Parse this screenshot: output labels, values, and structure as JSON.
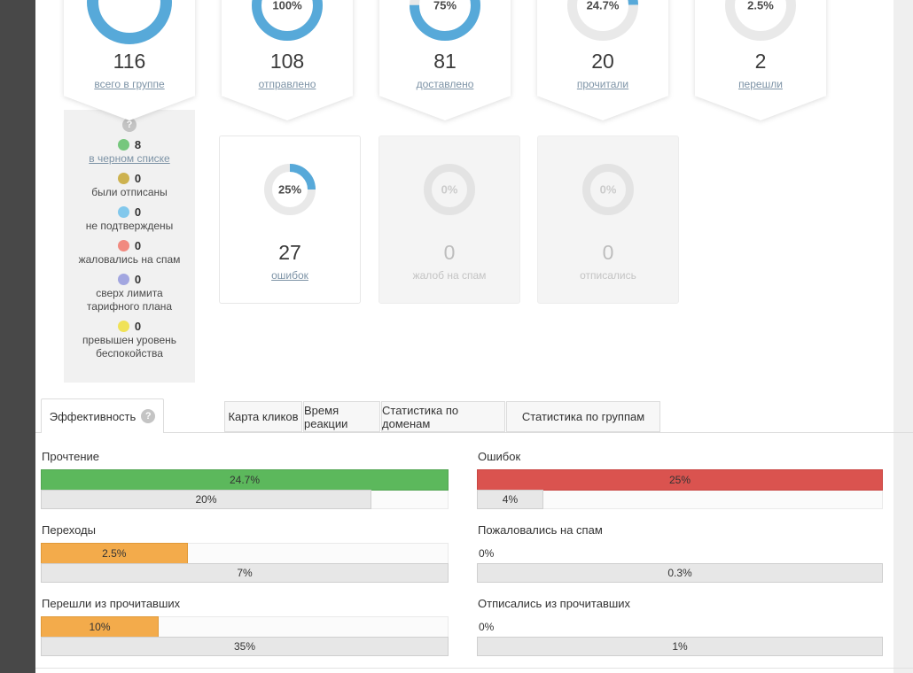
{
  "colors": {
    "blue": "#57a9d9",
    "green": "#5cb85c",
    "green_border": "#53a553",
    "orange": "#f3ab4b",
    "orange_border": "#e09a3a",
    "red": "#da534f",
    "red_border": "#c94743",
    "ring_gray": "#e9e9e9",
    "ring_gray_dim": "#e3e3e3",
    "gray_fill": "#e7e7e7",
    "gray_fill_border": "#cfcfcf",
    "link": "#7d93a6",
    "rail": "#484848"
  },
  "top_cards": [
    {
      "key": "total",
      "value": "116",
      "label": "всего в группе",
      "percent_label": "",
      "ring_pct": 100,
      "big": true
    },
    {
      "key": "sent",
      "value": "108",
      "label": "отправлено",
      "percent_label": "100%",
      "ring_pct": 100,
      "big": false
    },
    {
      "key": "delivered",
      "value": "81",
      "label": "доставлено",
      "percent_label": "75%",
      "ring_pct": 75,
      "big": false
    },
    {
      "key": "read",
      "value": "20",
      "label": "прочитали",
      "percent_label": "24.7%",
      "ring_pct": 24.7,
      "big": false
    },
    {
      "key": "clicked",
      "value": "2",
      "label": "перешли",
      "percent_label": "2.5%",
      "ring_pct": 2.5,
      "big": false
    }
  ],
  "legend": {
    "help_icon": "?",
    "items": [
      {
        "color": "#76c77d",
        "value": "8",
        "label": "в черном списке",
        "link": true
      },
      {
        "color": "#cdb24f",
        "value": "0",
        "label": "были отписаны",
        "link": false
      },
      {
        "color": "#82c8ec",
        "value": "0",
        "label": "не подтверждены",
        "link": false
      },
      {
        "color": "#f18a80",
        "value": "0",
        "label": "жаловались на спам",
        "link": false
      },
      {
        "color": "#a2a6e0",
        "value": "0",
        "label": "сверх лимита тарифного плана",
        "link": false
      },
      {
        "color": "#f0e257",
        "value": "0",
        "label": "превышен уровень беспокойства",
        "link": false
      }
    ]
  },
  "mid_cards": [
    {
      "key": "errors",
      "value": "27",
      "label": "ошибок",
      "percent_label": "25%",
      "ring_pct": 25,
      "active": true
    },
    {
      "key": "spam-complaints",
      "value": "0",
      "label": "жалоб на спам",
      "percent_label": "0%",
      "ring_pct": 0,
      "active": false
    },
    {
      "key": "unsubscribed",
      "value": "0",
      "label": "отписались",
      "percent_label": "0%",
      "ring_pct": 0,
      "active": false
    }
  ],
  "tabs": [
    {
      "key": "effectiveness",
      "label": "Эффективность",
      "active": true,
      "help_icon": "?"
    },
    {
      "key": "click-map",
      "label": "Карта кликов",
      "active": false
    },
    {
      "key": "reaction-time",
      "label": "Время реакции",
      "active": false
    },
    {
      "key": "domain-stats",
      "label": "Статистика по доменам",
      "active": false
    },
    {
      "key": "group-stats",
      "label": "Статистика по группам",
      "active": false
    }
  ],
  "chart_data": [
    {
      "type": "pie",
      "title": "воронка рассылки (donut cards)",
      "series": [
        {
          "label": "всего в группе",
          "value": 116,
          "pct": null
        },
        {
          "label": "отправлено",
          "value": 108,
          "pct": 100
        },
        {
          "label": "доставлено",
          "value": 81,
          "pct": 75
        },
        {
          "label": "прочитали",
          "value": 20,
          "pct": 24.7
        },
        {
          "label": "перешли",
          "value": 2,
          "pct": 2.5
        },
        {
          "label": "ошибок",
          "value": 27,
          "pct": 25
        },
        {
          "label": "жалоб на спам",
          "value": 0,
          "pct": 0
        },
        {
          "label": "отписались",
          "value": 0,
          "pct": 0
        }
      ]
    },
    {
      "type": "bar",
      "title": "Эффективность",
      "note": "paired horizontal bars: campaign value vs comparison value; widths scaled to pair max",
      "columns": [
        {
          "metrics": [
            {
              "label": "Прочтение",
              "value": 24.7,
              "value_label": "24.7%",
              "compare": 20,
              "compare_label": "20%",
              "color": "green"
            },
            {
              "label": "Переходы",
              "value": 2.5,
              "value_label": "2.5%",
              "compare": 7,
              "compare_label": "7%",
              "color": "orange"
            },
            {
              "label": "Перешли из прочитавших",
              "value": 10,
              "value_label": "10%",
              "compare": 35,
              "compare_label": "35%",
              "color": "orange"
            }
          ]
        },
        {
          "metrics": [
            {
              "label": "Ошибок",
              "value": 25,
              "value_label": "25%",
              "compare": 4,
              "compare_label": "4%",
              "color": "red"
            },
            {
              "label": "Пожаловались на спам",
              "value": 0,
              "value_label": "0%",
              "compare": 0.3,
              "compare_label": "0.3%",
              "color": "orange"
            },
            {
              "label": "Отписались из прочитавших",
              "value": 0,
              "value_label": "0%",
              "compare": 1,
              "compare_label": "1%",
              "color": "red"
            }
          ]
        }
      ]
    }
  ]
}
